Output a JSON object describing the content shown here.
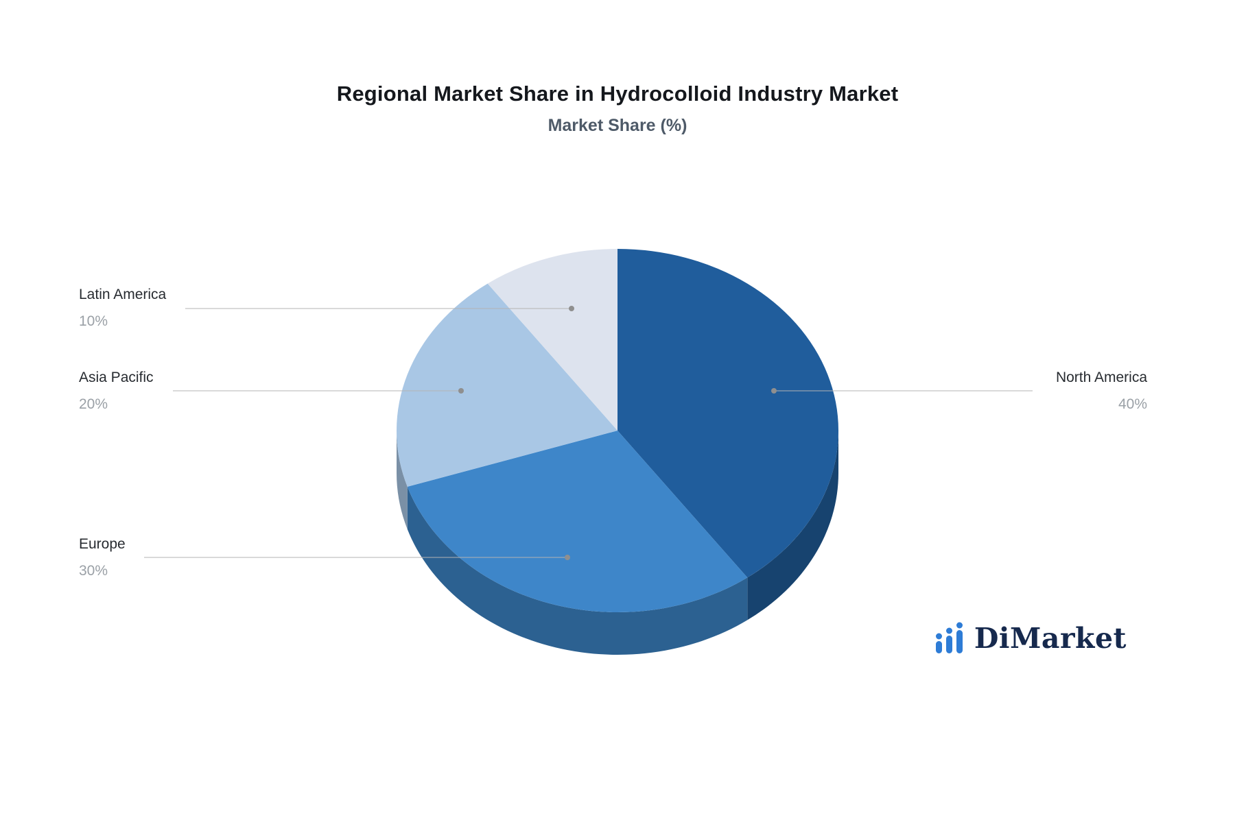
{
  "title": "Regional Market Share in Hydrocolloid Industry Market",
  "subtitle": "Market Share (%)",
  "chart_data": {
    "type": "pie",
    "style": "3d",
    "title": "Regional Market Share in Hydrocolloid Industry Market",
    "subtitle": "Market Share (%)",
    "unit": "%",
    "start_angle_deg": -90,
    "direction": "clockwise",
    "legend_position": "none",
    "labels": [
      "North America",
      "Europe",
      "Asia Pacific",
      "Latin America"
    ],
    "values": [
      40,
      30,
      20,
      10
    ],
    "pct_labels": [
      "40%",
      "30%",
      "20%",
      "10%"
    ],
    "colors": [
      "#205d9c",
      "#3e86c9",
      "#a9c7e5",
      "#dde3ee"
    ],
    "side_colors": [
      "#17436f",
      "#2c6191",
      "#7a90a6",
      "#9fa4ab"
    ],
    "callout_line_color": "#b3b3b3",
    "callout_dot_color": "#8f8f8f"
  },
  "logo": {
    "text": "DiMarket",
    "icon": "bar-chart-icon",
    "text_color": "#16294d",
    "icon_color": "#2e7cd6"
  }
}
